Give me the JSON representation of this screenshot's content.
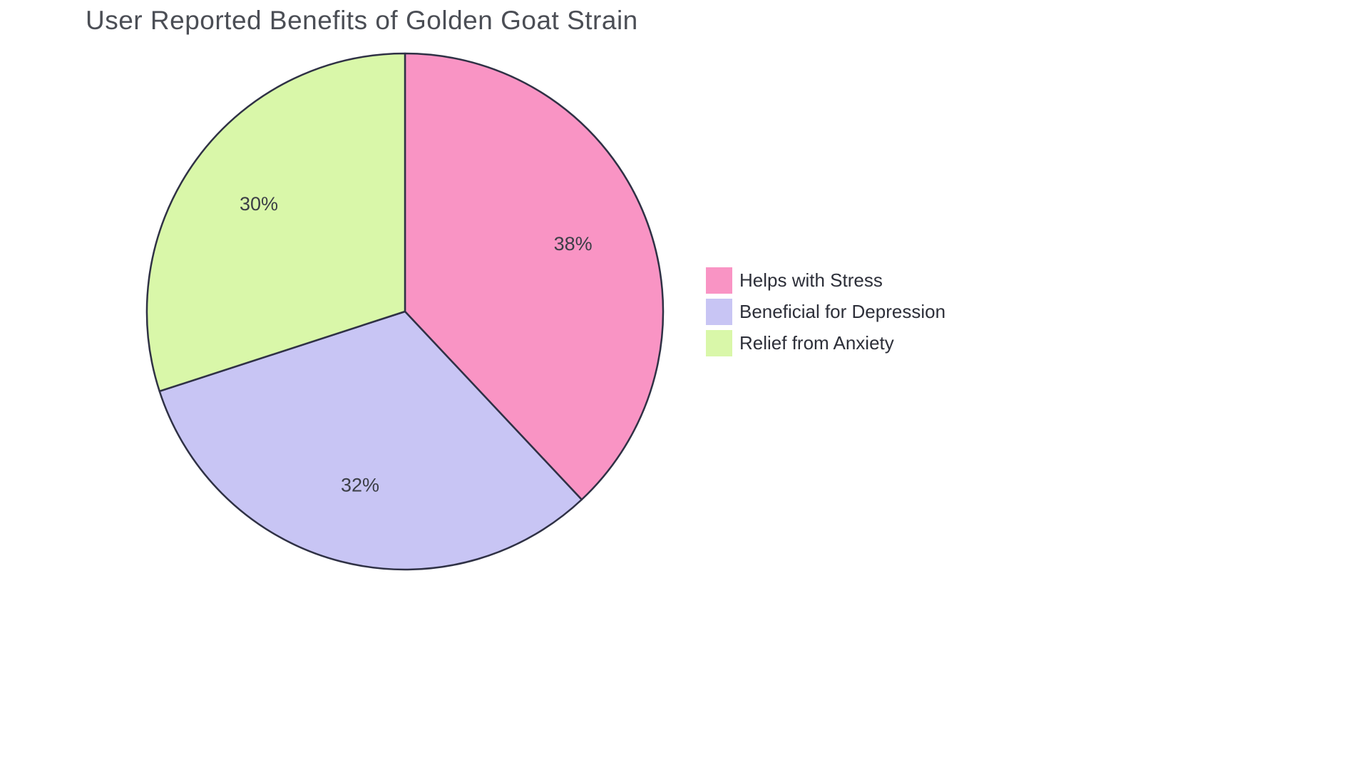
{
  "title": "User Reported Benefits of Golden Goat Strain",
  "chart_data": {
    "type": "pie",
    "title": "User Reported Benefits of Golden Goat Strain",
    "labels": [
      "Helps with Stress",
      "Beneficial for Depression",
      "Relief from Anxiety"
    ],
    "values": [
      38,
      32,
      30
    ],
    "value_labels": [
      "38%",
      "32%",
      "30%"
    ],
    "colors": [
      "#F994C4",
      "#C8C5F4",
      "#D9F7A9"
    ],
    "stroke_color": "#2F3145",
    "label_color": "#3b3e46",
    "start_angle": "top",
    "direction": "clockwise",
    "legend_position": "right"
  }
}
